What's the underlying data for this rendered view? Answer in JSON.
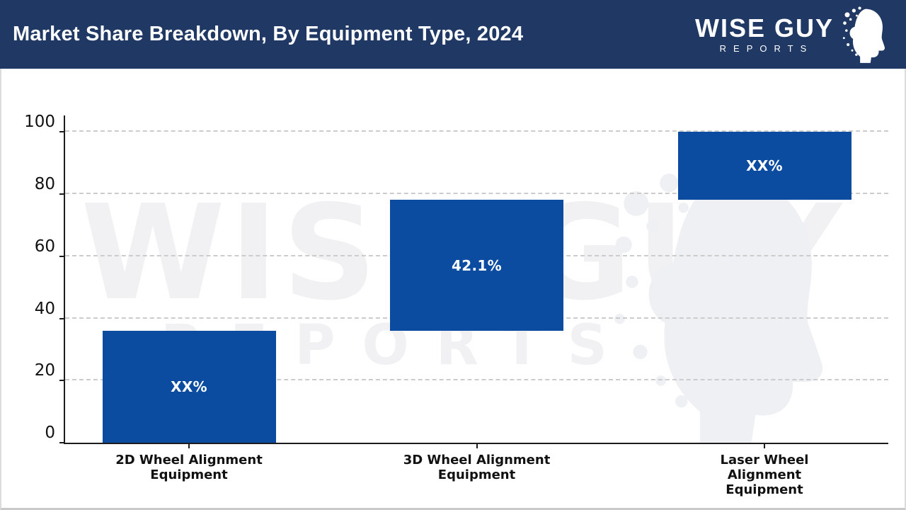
{
  "header": {
    "title": "Market Share Breakdown, By Equipment Type, 2024",
    "logo": {
      "wordmark": "WISE GUY",
      "subtitle": "REPORTS"
    }
  },
  "watermark": {
    "line1": "WISE GUY",
    "line2": "REPORTS"
  },
  "colors": {
    "header_bg": "#1f3864",
    "bar_blue": "#0b4ba0",
    "grid_gray": "#cccccc",
    "watermark_gray": "#f1f1f4"
  },
  "chart_data": {
    "type": "bar",
    "subtype": "stacked_waterfall_segments",
    "title": "Market Share Breakdown, By Equipment Type, 2024",
    "xlabel": "",
    "ylabel": "",
    "categories": [
      "2D Wheel Alignment\nEquipment",
      "3D Wheel Alignment\nEquipment",
      "Laser Wheel\nAlignment\nEquipment"
    ],
    "segments": [
      {
        "category": "2D Wheel Alignment Equipment",
        "label": "XX%",
        "start": 0,
        "end": 36,
        "value_estimate": 36
      },
      {
        "category": "3D Wheel Alignment Equipment",
        "label": "42.1%",
        "start": 36,
        "end": 78.1,
        "value_estimate": 42.1
      },
      {
        "category": "Laser Wheel Alignment Equipment",
        "label": "XX%",
        "start": 78.1,
        "end": 100,
        "value_estimate": 21.9
      }
    ],
    "yticks": [
      0,
      20,
      40,
      60,
      80,
      100
    ],
    "ylim": [
      0,
      105.3
    ],
    "bar_color": "#0b4ba0",
    "grid": {
      "axis": "y",
      "style": "dashed",
      "color": "#cccccc"
    },
    "legend": null
  }
}
